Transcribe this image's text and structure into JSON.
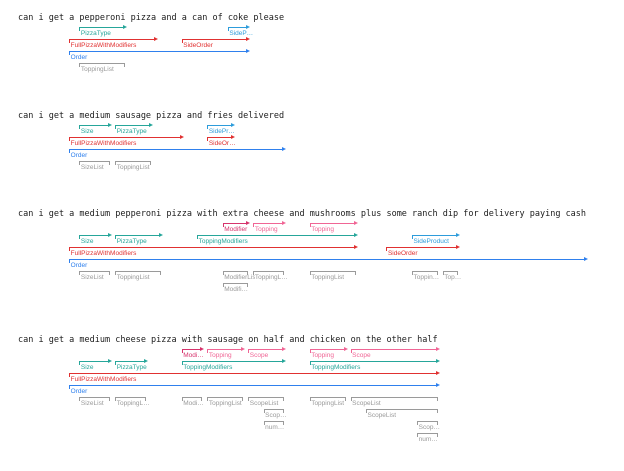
{
  "palette": {
    "teal": "#26a69a",
    "red": "#e03131",
    "blue": "#2f80ed",
    "cyan": "#2d9cdb",
    "pink": "#f06595",
    "crimson": "#d6336c",
    "gray": "#9a9a9a"
  },
  "blocks": [
    {
      "text": "can i get a pepperoni pizza and a can of coke please",
      "annotations": [
        {
          "label": "PizzaType",
          "color": "teal",
          "row": 0,
          "start": 12,
          "end": 21
        },
        {
          "label": "SideP…",
          "color": "cyan",
          "row": 0,
          "start": 41,
          "end": 45
        },
        {
          "label": "FullPizzaWithModifiers",
          "color": "red",
          "row": 1,
          "start": 10,
          "end": 27
        },
        {
          "label": "SideOrder",
          "color": "red",
          "row": 1,
          "start": 32,
          "end": 45
        },
        {
          "label": "Order",
          "color": "blue",
          "row": 2,
          "start": 10,
          "end": 45
        },
        {
          "label": "ToppingList",
          "color": "gray",
          "row": 3,
          "start": 12,
          "end": 21
        }
      ]
    },
    {
      "text": "can i get a medium sausage pizza and fries delivered",
      "annotations": [
        {
          "label": "Size",
          "color": "teal",
          "row": 0,
          "start": 12,
          "end": 18
        },
        {
          "label": "PizzaType",
          "color": "teal",
          "row": 0,
          "start": 19,
          "end": 26
        },
        {
          "label": "SidePr…",
          "color": "cyan",
          "row": 0,
          "start": 37,
          "end": 42
        },
        {
          "label": "FullPizzaWithModifiers",
          "color": "red",
          "row": 1,
          "start": 10,
          "end": 32
        },
        {
          "label": "SideOr…",
          "color": "red",
          "row": 1,
          "start": 37,
          "end": 42
        },
        {
          "label": "Order",
          "color": "blue",
          "row": 2,
          "start": 10,
          "end": 52
        },
        {
          "label": "SizeList",
          "color": "gray",
          "row": 3,
          "start": 12,
          "end": 18
        },
        {
          "label": "ToppingList",
          "color": "gray",
          "row": 3,
          "start": 19,
          "end": 26
        }
      ]
    },
    {
      "text": "can i get a medium pepperoni pizza with extra cheese and mushrooms plus some ranch dip for delivery paying cash",
      "annotations": [
        {
          "label": "Modifier",
          "color": "crimson",
          "row": 0,
          "start": 40,
          "end": 45
        },
        {
          "label": "Topping",
          "color": "pink",
          "row": 0,
          "start": 46,
          "end": 52
        },
        {
          "label": "Topping",
          "color": "pink",
          "row": 0,
          "start": 57,
          "end": 66
        },
        {
          "label": "Size",
          "color": "teal",
          "row": 1,
          "start": 12,
          "end": 18
        },
        {
          "label": "PizzaType",
          "color": "teal",
          "row": 1,
          "start": 19,
          "end": 28
        },
        {
          "label": "ToppingModifiers",
          "color": "teal",
          "row": 1,
          "start": 35,
          "end": 66
        },
        {
          "label": "SideProduct",
          "color": "cyan",
          "row": 1,
          "start": 77,
          "end": 86
        },
        {
          "label": "FullPizzaWithModifiers",
          "color": "red",
          "row": 2,
          "start": 10,
          "end": 66
        },
        {
          "label": "SideOrder",
          "color": "red",
          "row": 2,
          "start": 72,
          "end": 86
        },
        {
          "label": "Order",
          "color": "blue",
          "row": 3,
          "start": 10,
          "end": 111
        },
        {
          "label": "SizeList",
          "color": "gray",
          "row": 4,
          "start": 12,
          "end": 18
        },
        {
          "label": "ToppingList",
          "color": "gray",
          "row": 4,
          "start": 19,
          "end": 28
        },
        {
          "label": "ModifierList",
          "color": "gray",
          "row": 4,
          "start": 40,
          "end": 45
        },
        {
          "label": "ToppingL…",
          "color": "gray",
          "row": 4,
          "start": 46,
          "end": 52
        },
        {
          "label": "ToppingList",
          "color": "gray",
          "row": 4,
          "start": 57,
          "end": 66
        },
        {
          "label": "Toppin…",
          "color": "gray",
          "row": 4,
          "start": 77,
          "end": 82
        },
        {
          "label": "Top…",
          "color": "gray",
          "row": 4,
          "start": 83,
          "end": 86
        },
        {
          "label": "Modifi…",
          "color": "gray",
          "row": 5,
          "start": 40,
          "end": 45
        }
      ]
    },
    {
      "text": "can i get a medium cheese pizza with sausage on half and chicken on the other half",
      "annotations": [
        {
          "label": "Modi…",
          "color": "crimson",
          "row": 0,
          "start": 32,
          "end": 36
        },
        {
          "label": "Topping",
          "color": "pink",
          "row": 0,
          "start": 37,
          "end": 44
        },
        {
          "label": "Scope",
          "color": "pink",
          "row": 0,
          "start": 45,
          "end": 52
        },
        {
          "label": "Topping",
          "color": "pink",
          "row": 0,
          "start": 57,
          "end": 64
        },
        {
          "label": "Scope",
          "color": "pink",
          "row": 0,
          "start": 65,
          "end": 82
        },
        {
          "label": "Size",
          "color": "teal",
          "row": 1,
          "start": 12,
          "end": 18
        },
        {
          "label": "PizzaType",
          "color": "teal",
          "row": 1,
          "start": 19,
          "end": 25
        },
        {
          "label": "ToppingModifiers",
          "color": "teal",
          "row": 1,
          "start": 32,
          "end": 52
        },
        {
          "label": "ToppingModifiers",
          "color": "teal",
          "row": 1,
          "start": 57,
          "end": 82
        },
        {
          "label": "FullPizzaWithModifiers",
          "color": "red",
          "row": 2,
          "start": 10,
          "end": 82
        },
        {
          "label": "Order",
          "color": "blue",
          "row": 3,
          "start": 10,
          "end": 82
        },
        {
          "label": "SizeList",
          "color": "gray",
          "row": 4,
          "start": 12,
          "end": 18
        },
        {
          "label": "ToppingL…",
          "color": "gray",
          "row": 4,
          "start": 19,
          "end": 25
        },
        {
          "label": "Modi…",
          "color": "gray",
          "row": 4,
          "start": 32,
          "end": 36
        },
        {
          "label": "ToppingList",
          "color": "gray",
          "row": 4,
          "start": 37,
          "end": 44
        },
        {
          "label": "ScopeList",
          "color": "gray",
          "row": 4,
          "start": 45,
          "end": 52
        },
        {
          "label": "ToppingList",
          "color": "gray",
          "row": 4,
          "start": 57,
          "end": 64
        },
        {
          "label": "ScopeList",
          "color": "gray",
          "row": 4,
          "start": 65,
          "end": 82
        },
        {
          "label": "Scop…",
          "color": "gray",
          "row": 5,
          "start": 48,
          "end": 52
        },
        {
          "label": "ScopeList",
          "color": "gray",
          "row": 5,
          "start": 68,
          "end": 82
        },
        {
          "label": "num…",
          "color": "gray",
          "row": 6,
          "start": 48,
          "end": 52
        },
        {
          "label": "Scop…",
          "color": "gray",
          "row": 6,
          "start": 78,
          "end": 82
        },
        {
          "label": "num…",
          "color": "gray",
          "row": 7,
          "start": 78,
          "end": 82
        }
      ]
    }
  ]
}
